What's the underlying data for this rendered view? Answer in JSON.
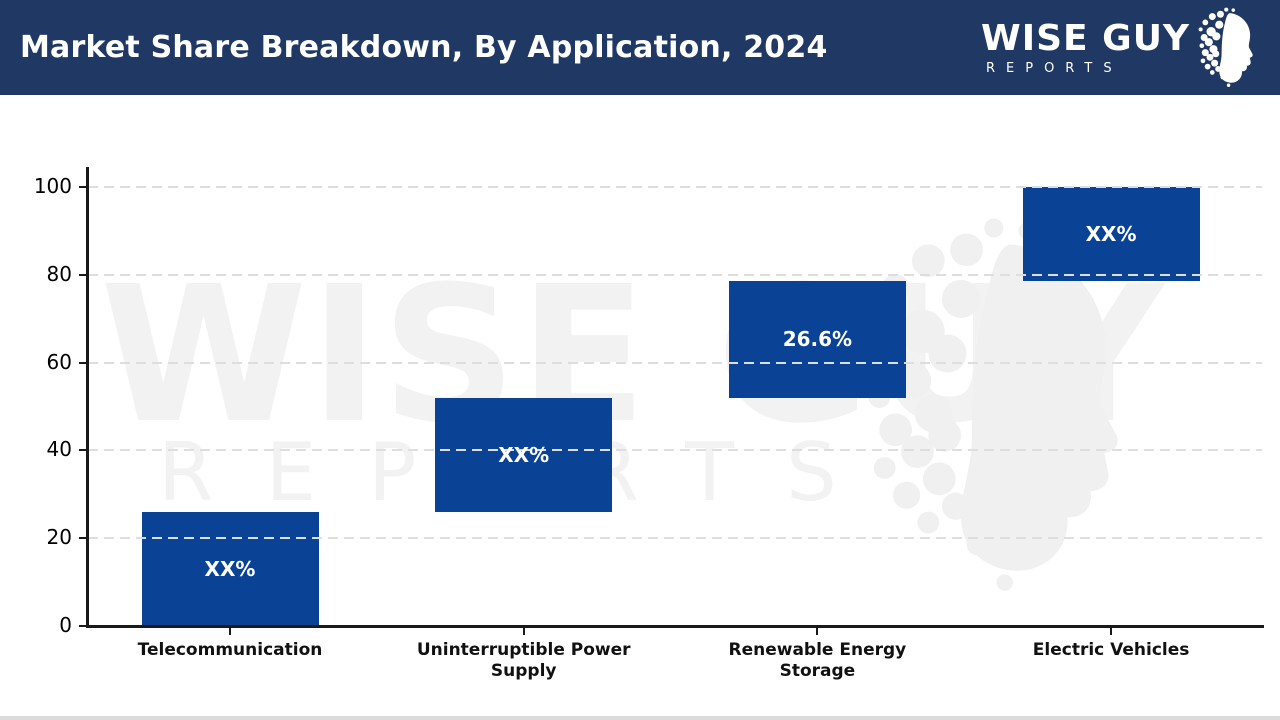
{
  "header": {
    "title": "Market Share Breakdown, By Application, 2024",
    "logo": {
      "line1": "WISE GUY",
      "line2": "REPORTS"
    }
  },
  "watermark": {
    "line1": "WISE GUY",
    "line2": "REPORTS"
  },
  "colors": {
    "header_bg": "#1f3864",
    "bar": "#0a4296",
    "watermark": "#f2f2f2",
    "gridline": "#dedede",
    "axis": "#1a1a1a",
    "bar_label_text": "#ffffff"
  },
  "chart_data": {
    "type": "bar",
    "variant": "floating-waterfall",
    "title": "Market Share Breakdown, By Application, 2024",
    "categories": [
      "Telecommunication",
      "Uninterruptible Power Supply",
      "Renewable Energy Storage",
      "Electric Vehicles"
    ],
    "segments": [
      {
        "category": "Telecommunication",
        "start": 0,
        "end": 26,
        "label": "XX%"
      },
      {
        "category": "Uninterruptible Power Supply",
        "start": 26,
        "end": 52,
        "label": "XX%"
      },
      {
        "category": "Renewable Energy Storage",
        "start": 52,
        "end": 78.6,
        "label": "26.6%"
      },
      {
        "category": "Electric Vehicles",
        "start": 78.6,
        "end": 100,
        "label": "XX%"
      }
    ],
    "ylim": [
      0,
      100
    ],
    "yticks": [
      0,
      20,
      40,
      60,
      80,
      100
    ],
    "grid": "horizontal-dashed",
    "legend": "none",
    "bar_color": "#0a4296"
  }
}
